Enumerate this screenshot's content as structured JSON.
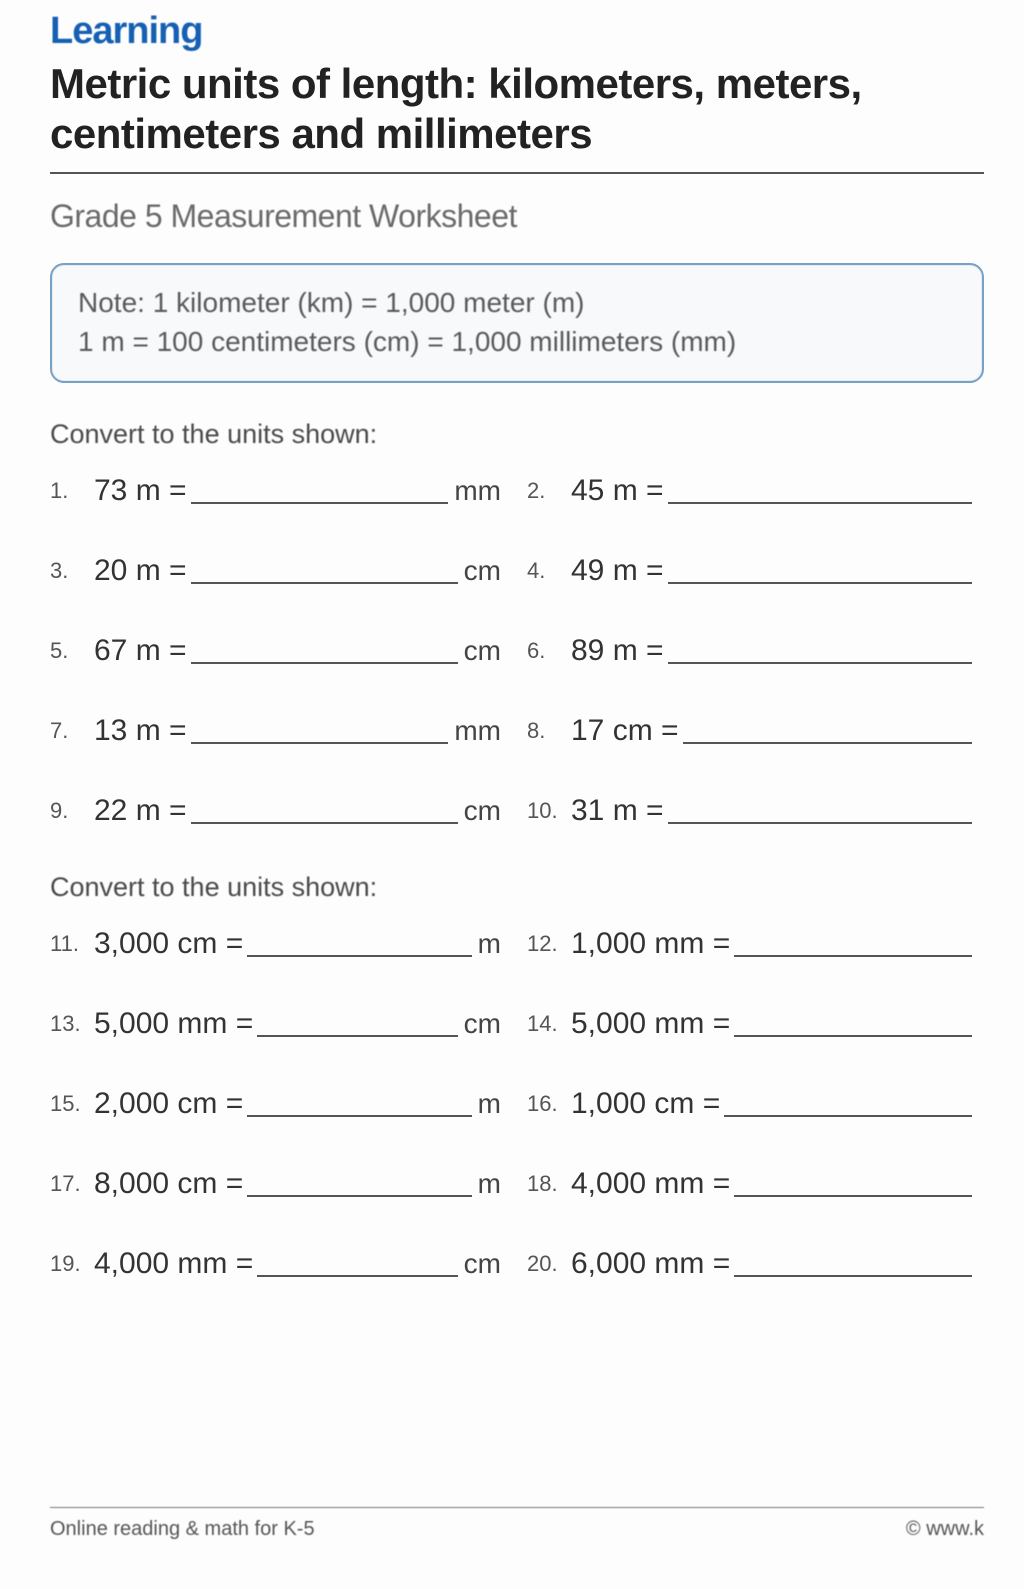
{
  "brand_fragment": "Learning",
  "title": "Metric units of length: kilometers, meters, centimeters and millimeters",
  "subtitle": "Grade 5 Measurement Worksheet",
  "note": {
    "line1": "Note:  1 kilometer (km) = 1,000 meter (m)",
    "line2": "1 m = 100 centimeters (cm) = 1,000 millimeters (mm)"
  },
  "section1": {
    "heading": "Convert to the units shown:",
    "problems": [
      {
        "n": "1.",
        "lhs": "73 m =",
        "unit": "mm"
      },
      {
        "n": "2.",
        "lhs": "45 m =",
        "unit": ""
      },
      {
        "n": "3.",
        "lhs": "20 m =",
        "unit": "cm"
      },
      {
        "n": "4.",
        "lhs": "49 m =",
        "unit": ""
      },
      {
        "n": "5.",
        "lhs": "67 m =",
        "unit": "cm"
      },
      {
        "n": "6.",
        "lhs": "89 m =",
        "unit": ""
      },
      {
        "n": "7.",
        "lhs": "13 m =",
        "unit": "mm"
      },
      {
        "n": "8.",
        "lhs": "17 cm =",
        "unit": ""
      },
      {
        "n": "9.",
        "lhs": "22 m =",
        "unit": "cm"
      },
      {
        "n": "10.",
        "lhs": "31 m =",
        "unit": ""
      }
    ]
  },
  "section2": {
    "heading": "Convert to the units shown:",
    "problems": [
      {
        "n": "11.",
        "lhs": "3,000 cm =",
        "unit": "m"
      },
      {
        "n": "12.",
        "lhs": "1,000 mm =",
        "unit": ""
      },
      {
        "n": "13.",
        "lhs": "5,000 mm =",
        "unit": "cm"
      },
      {
        "n": "14.",
        "lhs": "5,000 mm =",
        "unit": ""
      },
      {
        "n": "15.",
        "lhs": "2,000 cm =",
        "unit": "m"
      },
      {
        "n": "16.",
        "lhs": "1,000 cm =",
        "unit": ""
      },
      {
        "n": "17.",
        "lhs": "8,000 cm =",
        "unit": "m"
      },
      {
        "n": "18.",
        "lhs": "4,000 mm =",
        "unit": ""
      },
      {
        "n": "19.",
        "lhs": "4,000 mm =",
        "unit": "cm"
      },
      {
        "n": "20.",
        "lhs": "6,000 mm =",
        "unit": ""
      }
    ]
  },
  "footer": {
    "left": "Online reading & math for K-5",
    "right": "© www.k"
  }
}
